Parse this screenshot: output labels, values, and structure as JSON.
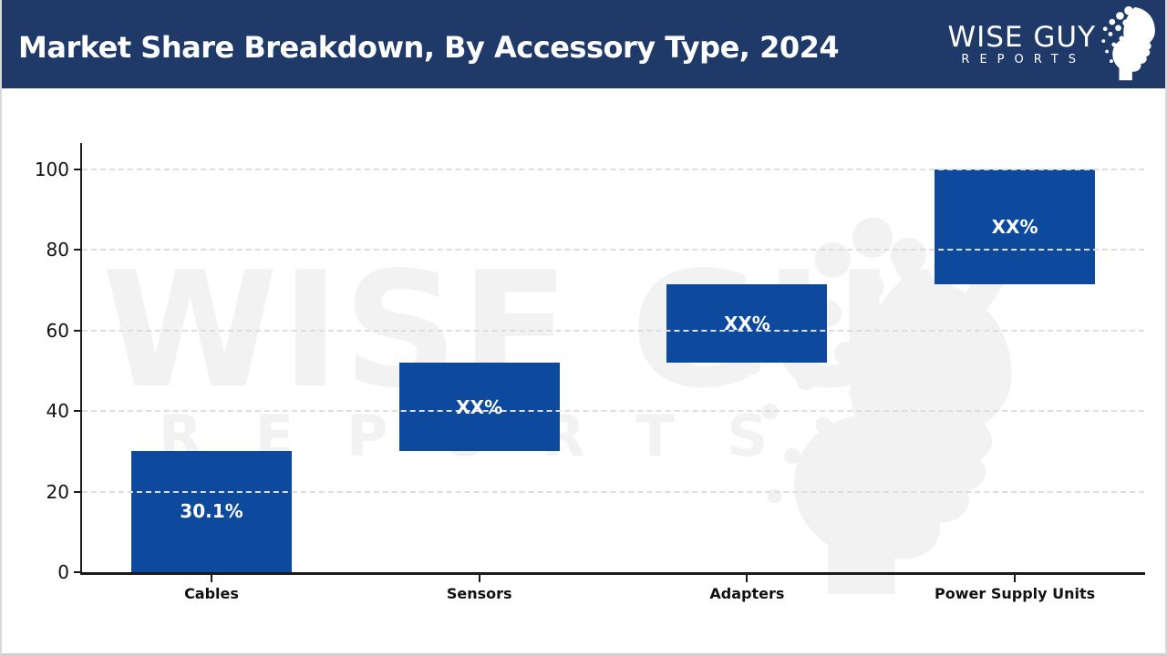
{
  "header": {
    "title": "Market Share Breakdown, By Accessory Type, 2024",
    "bg_color": "#1f3a68",
    "logo": {
      "line1": "WISE GUY",
      "line2": "REPORTS"
    }
  },
  "watermark": {
    "line1": "WISE GUY",
    "line2": "REPORTS",
    "color": "#f2f2f2"
  },
  "chart_data": {
    "type": "bar",
    "subtype": "waterfall",
    "title": "Market Share Breakdown, By Accessory Type, 2024",
    "xlabel": "",
    "ylabel": "",
    "categories": [
      "Cables",
      "Sensors",
      "Adapters",
      "Power Supply Units"
    ],
    "segments": [
      {
        "category": "Cables",
        "start": 0,
        "end": 30.1,
        "label": "30.1%"
      },
      {
        "category": "Sensors",
        "start": 30.1,
        "end": 52,
        "label": "XX%"
      },
      {
        "category": "Adapters",
        "start": 52,
        "end": 71.5,
        "label": "XX%"
      },
      {
        "category": "Power Supply Units",
        "start": 71.5,
        "end": 100,
        "label": "XX%"
      }
    ],
    "yticks": [
      0,
      20,
      40,
      60,
      80,
      100
    ],
    "ylim": [
      0,
      106
    ],
    "bar_color": "#0d4a9e",
    "grid": "horizontal-dashed",
    "legend": "none"
  }
}
